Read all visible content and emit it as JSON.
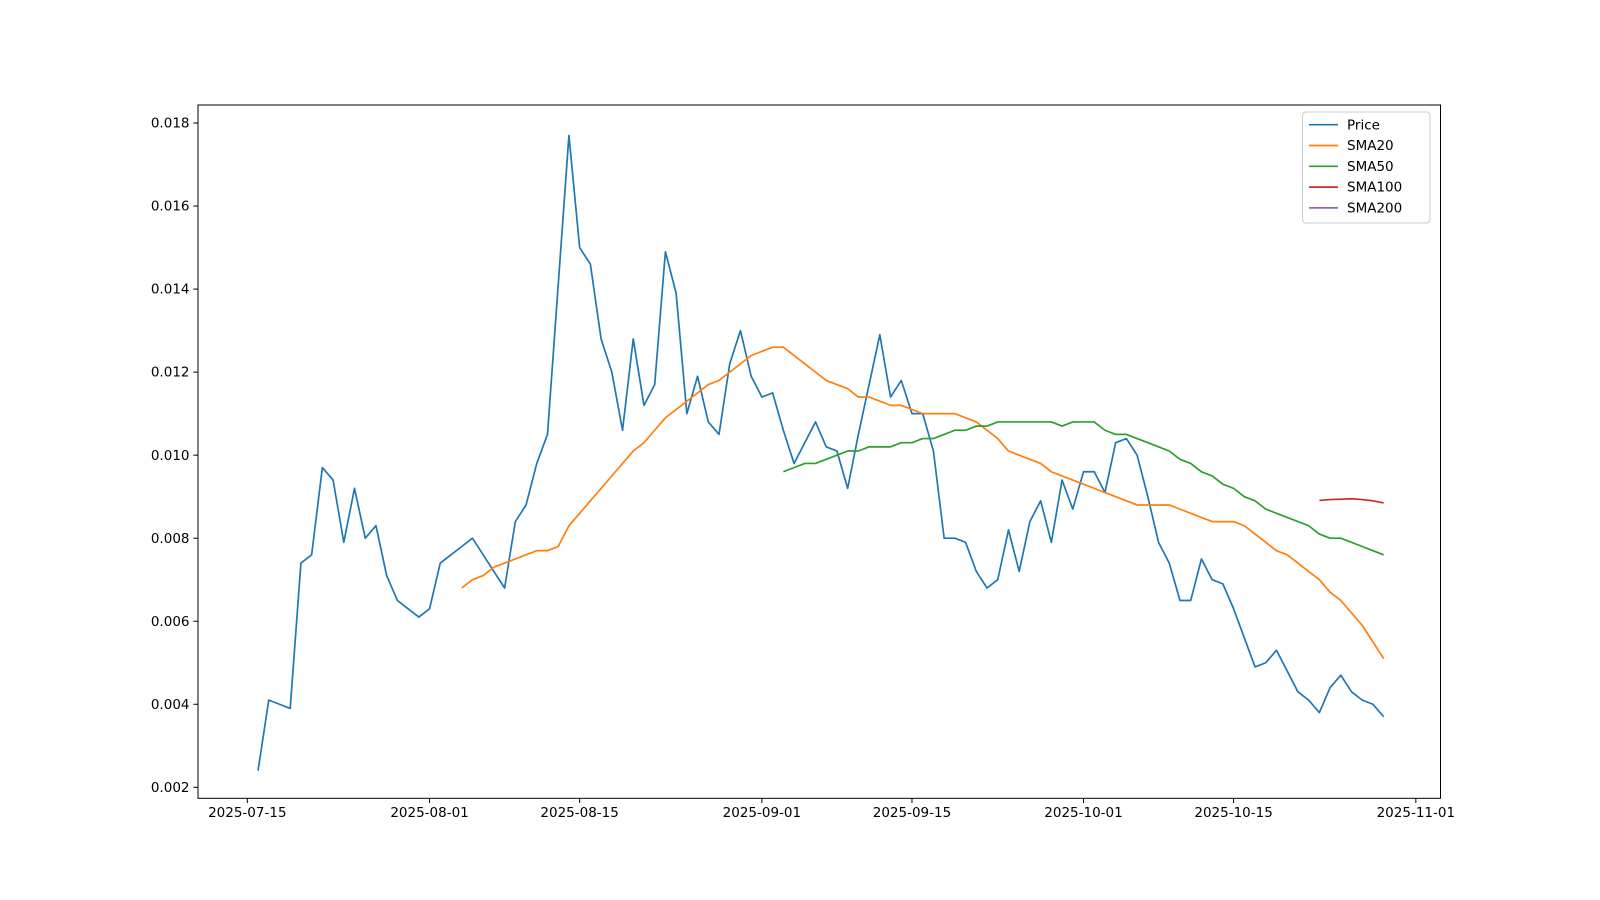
{
  "window": {
    "title": "Price chart with simple moving averages"
  },
  "chart_data": {
    "type": "line",
    "title": "",
    "xlabel": "",
    "ylabel": "",
    "grid": false,
    "background": "#ffffff",
    "spine_color": "#000000",
    "x_ref_date": "2025-07-15",
    "xlim_days": [
      -4.6,
      111.3
    ],
    "ylim": [
      0.001735,
      0.018434
    ],
    "x_tick_dates": [
      "2025-07-15",
      "2025-08-01",
      "2025-08-15",
      "2025-09-01",
      "2025-09-15",
      "2025-10-01",
      "2025-10-15",
      "2025-11-01"
    ],
    "x_tick_labels": [
      "2025-07-15",
      "2025-08-01",
      "2025-08-15",
      "2025-09-01",
      "2025-09-15",
      "2025-10-01",
      "2025-10-15",
      "2025-11-01"
    ],
    "y_tick_values": [
      0.002,
      0.004,
      0.006,
      0.008,
      0.01,
      0.012,
      0.014,
      0.016,
      0.018
    ],
    "y_tick_labels": [
      "0.002",
      "0.004",
      "0.006",
      "0.008",
      "0.010",
      "0.012",
      "0.014",
      "0.016",
      "0.018"
    ],
    "legend_position": "upper right",
    "series": [
      {
        "name": "Price",
        "color": "#1f77b4",
        "start_date": "2025-07-16",
        "values": [
          0.0024,
          0.0041,
          0.004,
          0.0039,
          0.0074,
          0.0076,
          0.0097,
          0.0094,
          0.0079,
          0.0092,
          0.008,
          0.0083,
          0.0071,
          0.0065,
          0.0063,
          0.0061,
          0.0063,
          0.0074,
          0.0076,
          0.0078,
          0.008,
          0.0076,
          0.0072,
          0.0068,
          0.0084,
          0.0088,
          0.0098,
          0.0105,
          0.0141,
          0.0177,
          0.015,
          0.0146,
          0.0128,
          0.012,
          0.0106,
          0.0128,
          0.0112,
          0.0117,
          0.0149,
          0.0139,
          0.011,
          0.0119,
          0.0108,
          0.0105,
          0.0122,
          0.013,
          0.0119,
          0.0114,
          0.0115,
          0.0106,
          0.0098,
          0.0103,
          0.0108,
          0.0102,
          0.0101,
          0.0092,
          0.0105,
          0.0117,
          0.0129,
          0.0114,
          0.0118,
          0.011,
          0.011,
          0.0101,
          0.008,
          0.008,
          0.0079,
          0.0072,
          0.0068,
          0.007,
          0.0082,
          0.0072,
          0.0084,
          0.0089,
          0.0079,
          0.0094,
          0.0087,
          0.0096,
          0.0096,
          0.0091,
          0.0103,
          0.0104,
          0.01,
          0.009,
          0.0079,
          0.0074,
          0.0065,
          0.0065,
          0.0075,
          0.007,
          0.0069,
          0.0063,
          0.0056,
          0.0049,
          0.005,
          0.0053,
          0.0048,
          0.0043,
          0.0041,
          0.0038,
          0.0044,
          0.0047,
          0.0043,
          0.0041,
          0.004,
          0.0037
        ]
      },
      {
        "name": "SMA20",
        "color": "#ff7f0e",
        "start_date": "2025-08-04",
        "values": [
          0.0068,
          0.007,
          0.0071,
          0.0073,
          0.0074,
          0.0075,
          0.0076,
          0.0077,
          0.0077,
          0.0078,
          0.0083,
          0.0086,
          0.0089,
          0.0092,
          0.0095,
          0.0098,
          0.0101,
          0.0103,
          0.0106,
          0.0109,
          0.0111,
          0.0113,
          0.0115,
          0.0117,
          0.0118,
          0.012,
          0.0122,
          0.0124,
          0.0125,
          0.0126,
          0.0126,
          0.0124,
          0.0122,
          0.012,
          0.0118,
          0.0117,
          0.0116,
          0.0114,
          0.0114,
          0.0113,
          0.0112,
          0.0112,
          0.0111,
          0.011,
          0.011,
          0.011,
          0.011,
          0.0109,
          0.0108,
          0.0106,
          0.0104,
          0.0101,
          0.01,
          0.0099,
          0.0098,
          0.0096,
          0.0095,
          0.0094,
          0.0093,
          0.0092,
          0.0091,
          0.009,
          0.0089,
          0.0088,
          0.0088,
          0.0088,
          0.0088,
          0.0087,
          0.0086,
          0.0085,
          0.0084,
          0.0084,
          0.0084,
          0.0083,
          0.0081,
          0.0079,
          0.0077,
          0.0076,
          0.0074,
          0.0072,
          0.007,
          0.0067,
          0.0065,
          0.0062,
          0.0059,
          0.0055,
          0.0051
        ]
      },
      {
        "name": "SMA50",
        "color": "#2ca02c",
        "start_date": "2025-09-03",
        "values": [
          0.0096,
          0.0097,
          0.0098,
          0.0098,
          0.0099,
          0.01,
          0.0101,
          0.0101,
          0.0102,
          0.0102,
          0.0102,
          0.0103,
          0.0103,
          0.0104,
          0.0104,
          0.0105,
          0.0106,
          0.0106,
          0.0107,
          0.0107,
          0.0108,
          0.0108,
          0.0108,
          0.0108,
          0.0108,
          0.0108,
          0.0107,
          0.0108,
          0.0108,
          0.0108,
          0.0106,
          0.0105,
          0.0105,
          0.0104,
          0.0103,
          0.0102,
          0.0101,
          0.0099,
          0.0098,
          0.0096,
          0.0095,
          0.0093,
          0.0092,
          0.009,
          0.0089,
          0.0087,
          0.0086,
          0.0085,
          0.0084,
          0.0083,
          0.0081,
          0.008,
          0.008,
          0.0079,
          0.0078,
          0.0077,
          0.0076
        ]
      },
      {
        "name": "SMA100",
        "color": "#d62728",
        "start_date": "2025-10-23",
        "values": [
          0.00891,
          0.00893,
          0.00894,
          0.00895,
          0.00893,
          0.0089,
          0.00885
        ]
      },
      {
        "name": "SMA200",
        "color": "#9467bd",
        "start_date": null,
        "values": []
      }
    ]
  }
}
